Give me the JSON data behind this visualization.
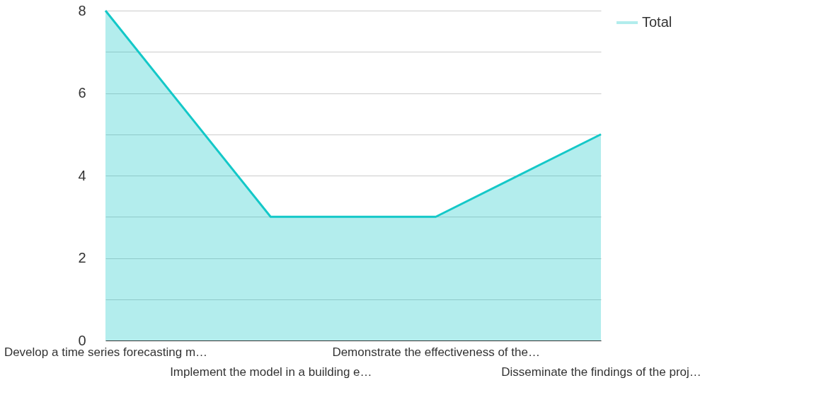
{
  "chart_data": {
    "type": "area",
    "categories": [
      "Develop a time series forecasting m…",
      "Implement the model in a building e…",
      "Demonstrate the effectiveness of the…",
      "Disseminate the findings of the proj…"
    ],
    "series": [
      {
        "name": "Total",
        "color": "#14c8c8",
        "values": [
          8,
          3,
          3,
          5
        ]
      }
    ],
    "ylim": [
      0,
      8
    ],
    "yticks": [
      0,
      {
        "value": 1,
        "label": null
      },
      2,
      {
        "value": 3,
        "label": null
      },
      4,
      {
        "value": 5,
        "label": null
      },
      6,
      {
        "value": 7,
        "label": null
      },
      8
    ],
    "grid": "y",
    "legend": "top right",
    "marker": "none"
  }
}
